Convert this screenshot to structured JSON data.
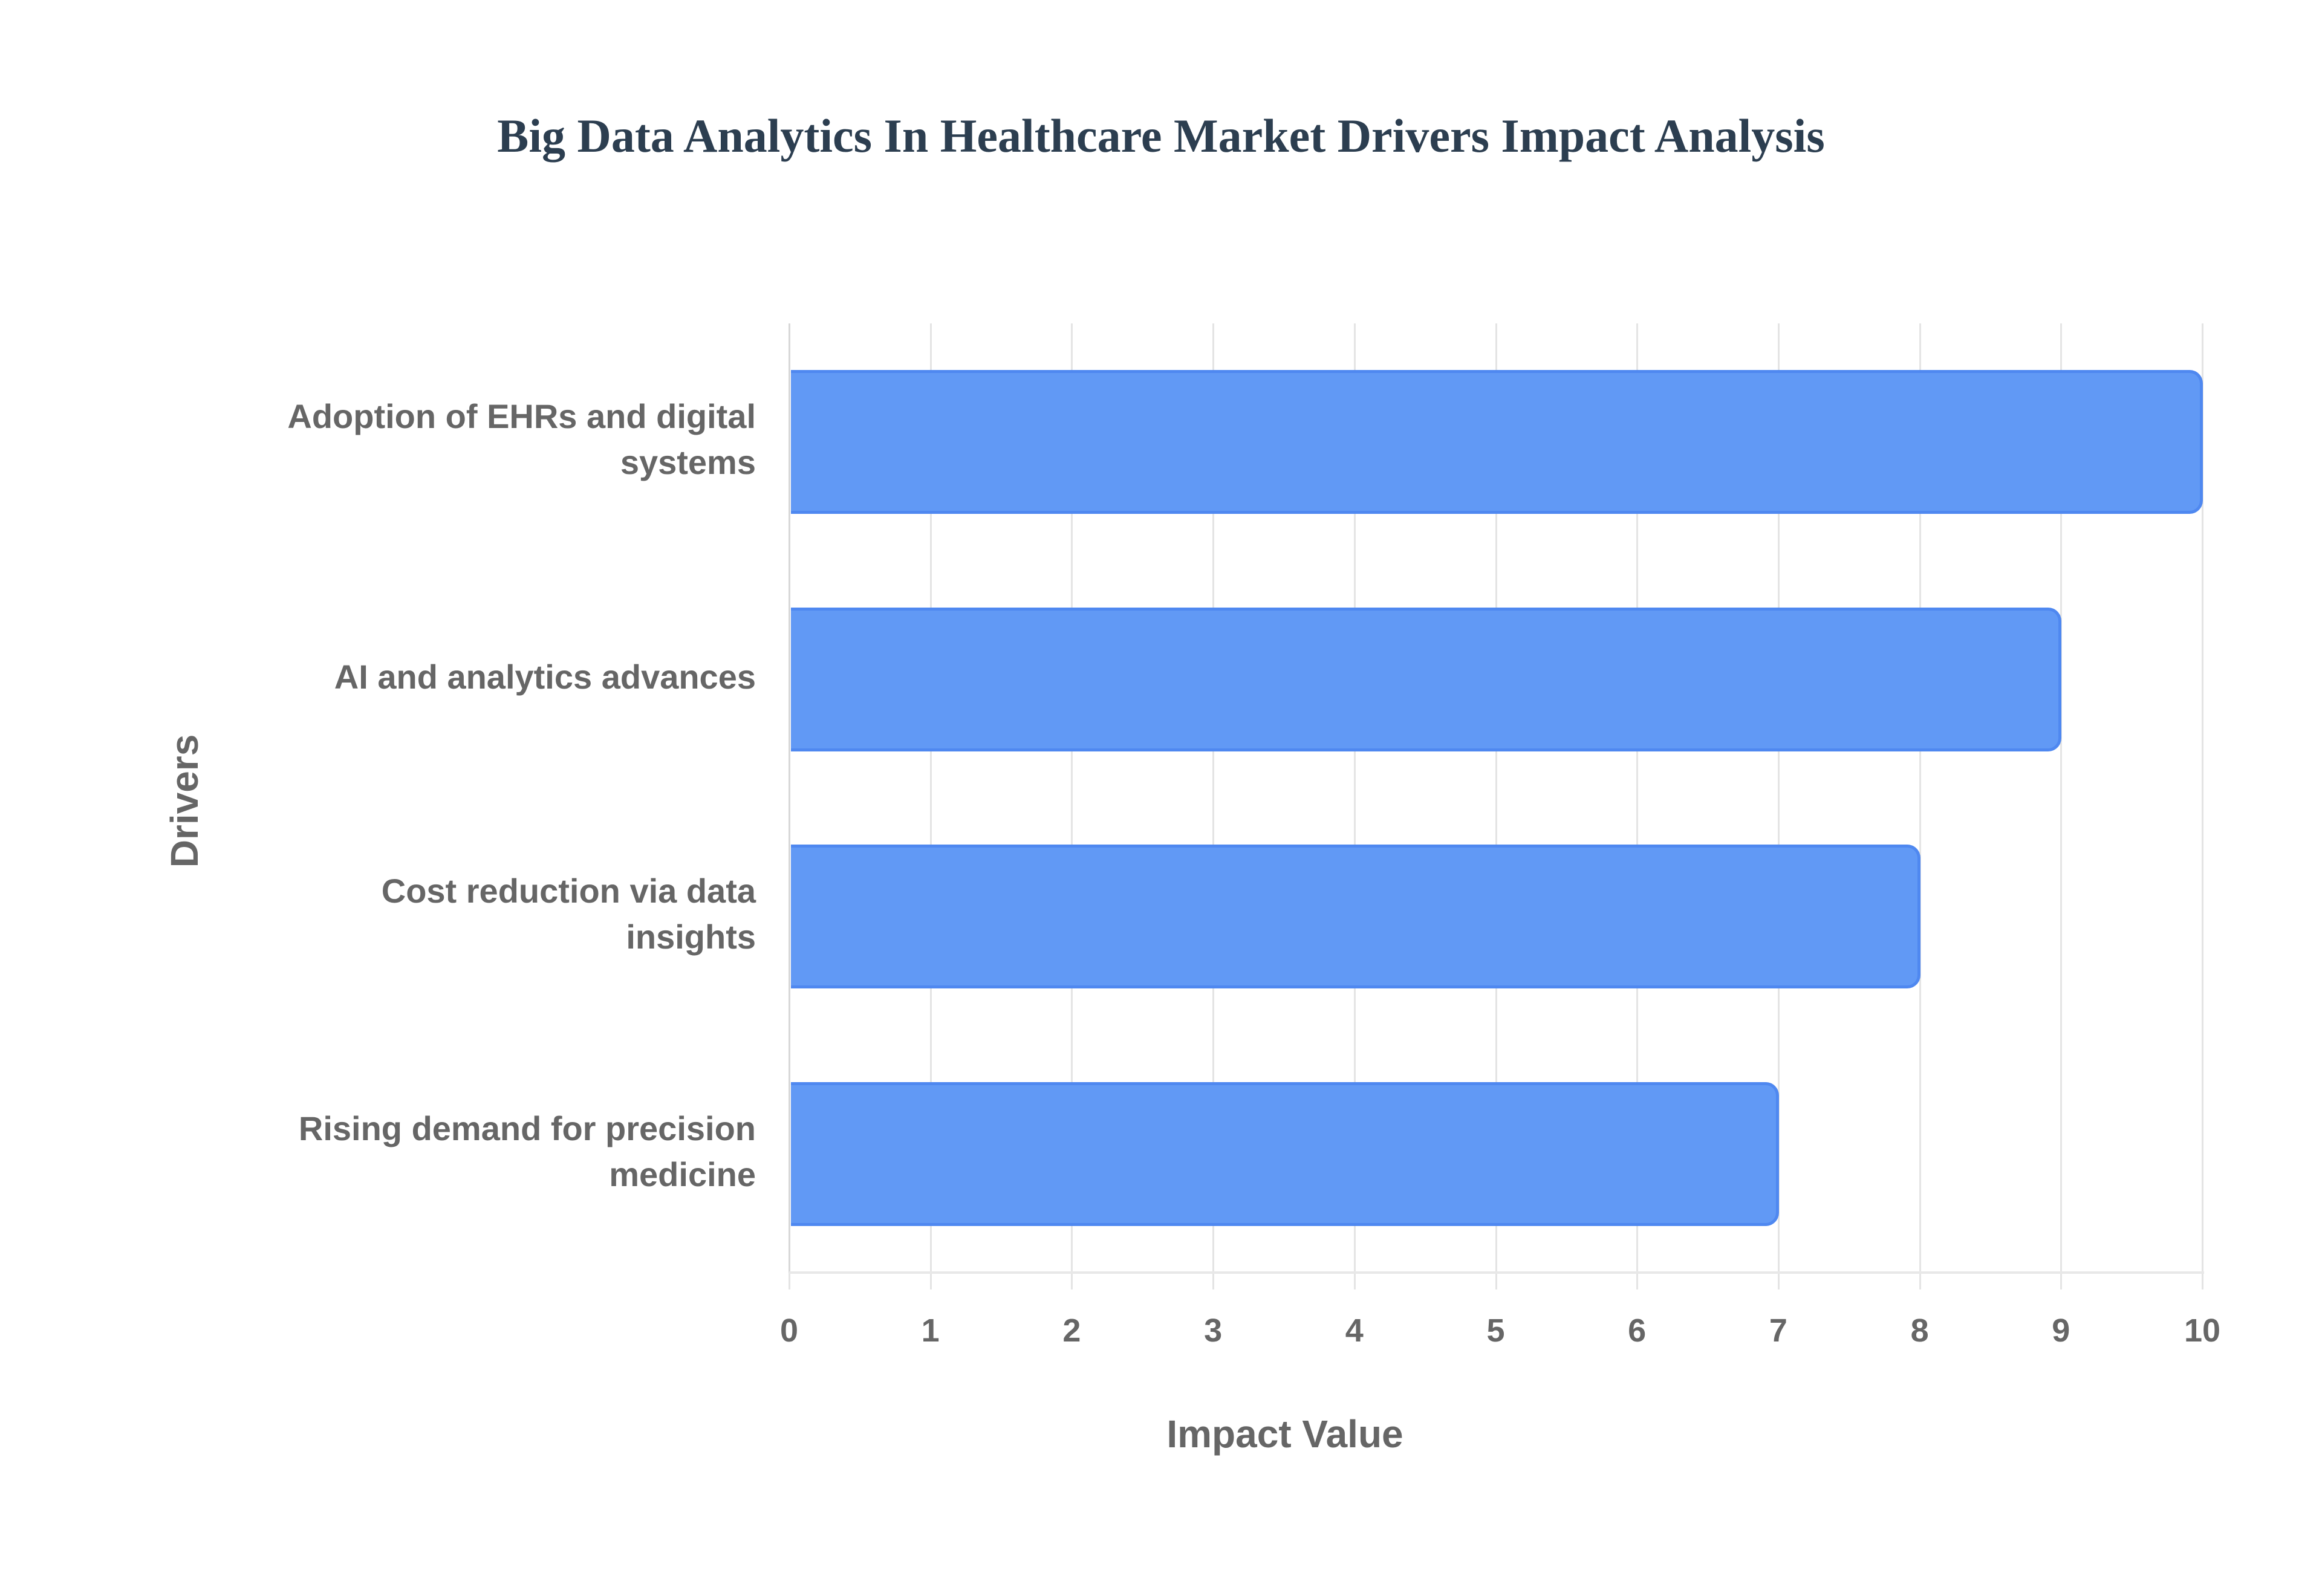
{
  "chart_data": {
    "type": "bar",
    "orientation": "horizontal",
    "title": "Big Data Analytics In Healthcare Market Drivers Impact Analysis",
    "xlabel": "Impact Value",
    "ylabel": "Drivers",
    "categories": [
      "Adoption of EHRs and digital systems",
      "AI and analytics advances",
      "Cost reduction via data insights",
      "Rising demand for precision medicine"
    ],
    "values": [
      10,
      9,
      8,
      7
    ],
    "xlim": [
      0,
      10
    ],
    "xticks": [
      "0",
      "1",
      "2",
      "3",
      "4",
      "5",
      "6",
      "7",
      "8",
      "9",
      "10"
    ],
    "grid": true,
    "legend": false,
    "bar_color": "#6199f5",
    "bar_border_color": "#4f88f0"
  },
  "labels": {
    "title": "Big Data Analytics In Healthcare Market Drivers Impact Analysis",
    "xaxis_title": "Impact Value",
    "yaxis_title": "Drivers",
    "categories": [
      {
        "line1": "Adoption of EHRs and digital",
        "line2": "systems"
      },
      {
        "line1": "AI and analytics advances",
        "line2": ""
      },
      {
        "line1": "Cost reduction via data",
        "line2": "insights"
      },
      {
        "line1": "Rising demand for precision",
        "line2": "medicine"
      }
    ],
    "xticks": [
      "0",
      "1",
      "2",
      "3",
      "4",
      "5",
      "6",
      "7",
      "8",
      "9",
      "10"
    ]
  }
}
